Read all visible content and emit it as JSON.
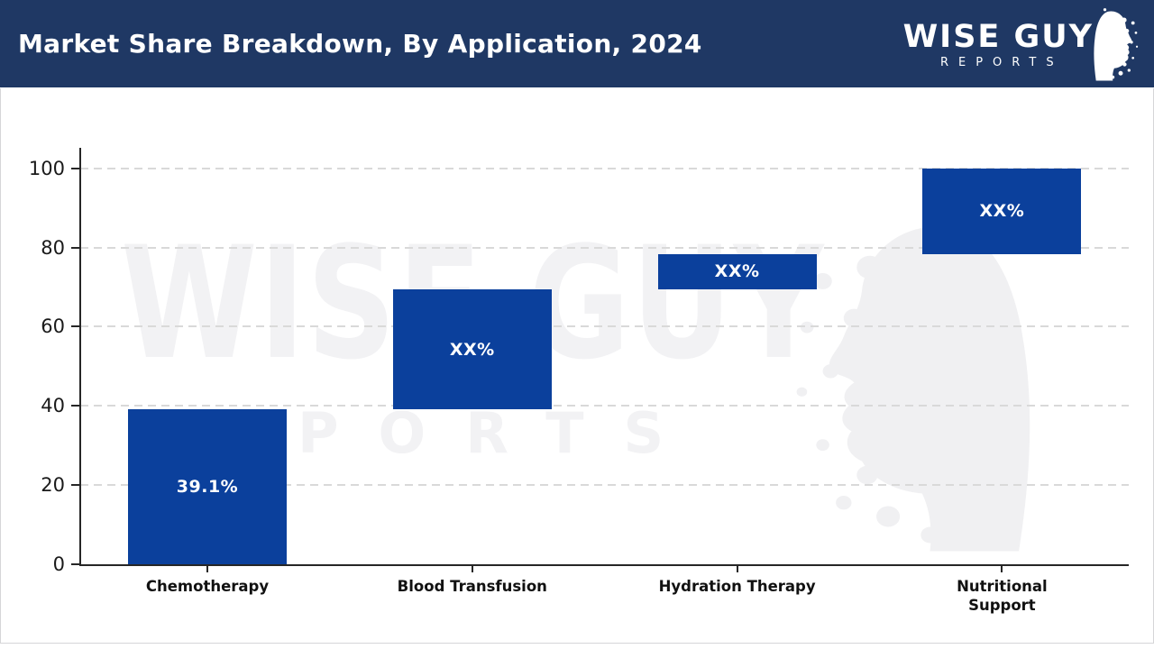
{
  "header": {
    "title": "Market Share Breakdown, By Application, 2024",
    "logo": {
      "line1": "WISE GUY",
      "line2": "REPORTS"
    }
  },
  "watermark": {
    "line1": "WISE GUY",
    "line2": "REPORTS"
  },
  "colors": {
    "header_bg": "#1f3864",
    "bar": "#0b409c",
    "grid": "#d9d9d9",
    "axis": "#262626",
    "bar_label_text": "#ffffff",
    "watermark": "#f2f2f4"
  },
  "chart_data": {
    "type": "bar",
    "subtype": "waterfall-stacked-range",
    "title": "Market Share Breakdown, By Application, 2024",
    "categories": [
      "Chemotherapy",
      "Blood Transfusion",
      "Hydration Therapy",
      "Nutritional\nSupport"
    ],
    "bars": [
      {
        "category": "Chemotherapy",
        "start": 0,
        "end": 39.1,
        "label": "39.1%"
      },
      {
        "category": "Blood Transfusion",
        "start": 39.1,
        "end": 69.5,
        "label": "XX%"
      },
      {
        "category": "Hydration Therapy",
        "start": 69.5,
        "end": 78.3,
        "label": "XX%"
      },
      {
        "category": "Nutritional Support",
        "start": 78.3,
        "end": 100,
        "label": "XX%"
      }
    ],
    "yticks": [
      0,
      20,
      40,
      60,
      80,
      100
    ],
    "ylim": [
      0,
      105
    ],
    "xlabel": "",
    "ylabel": "",
    "grid": true,
    "gridline_style": "dashed",
    "bar_color": "#0b409c",
    "legend": "none"
  }
}
